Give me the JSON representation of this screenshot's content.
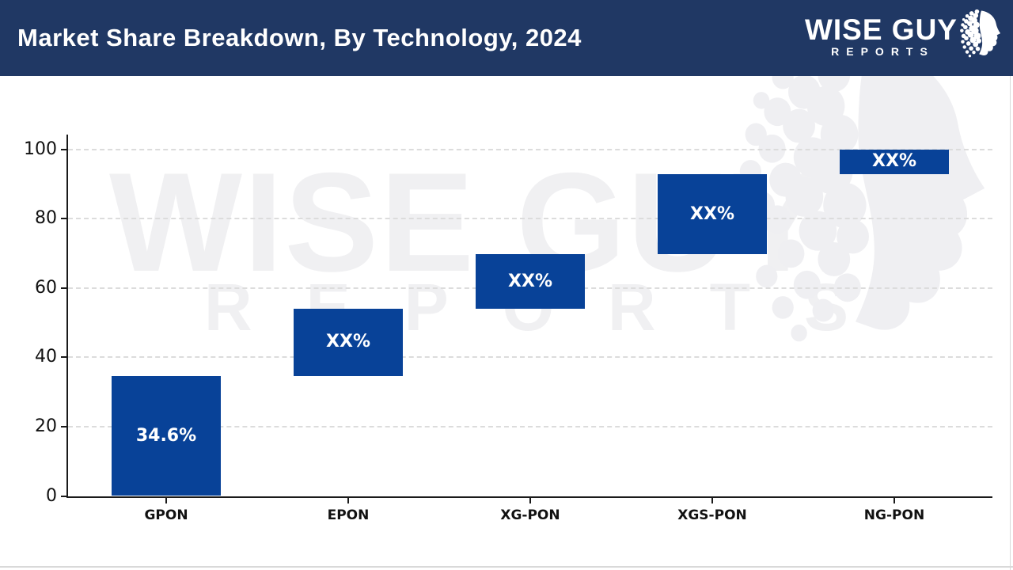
{
  "header": {
    "title": "Market Share Breakdown, By Technology, 2024",
    "logo": {
      "line1": "WISE GUY",
      "line2": "REPORTS"
    }
  },
  "watermark": {
    "line1": "WISE GUY",
    "line2": "REPORTS"
  },
  "colors": {
    "header_bg": "#203864",
    "bar": "#084298",
    "bar_label_text": "#ffffff",
    "grid": "#dcdcdc",
    "axis": "#1a1a1a",
    "tick_text": "#111111",
    "watermark": "#f0f0f2",
    "hairline": "#d9d9d9"
  },
  "chart_data": {
    "type": "bar",
    "subtype": "waterfall",
    "title": "Market Share Breakdown, By Technology, 2024",
    "categories": [
      "GPON",
      "EPON",
      "XG-PON",
      "XGS-PON",
      "NG-PON"
    ],
    "segments": [
      {
        "category": "GPON",
        "start": 0,
        "end": 34.6,
        "label": "34.6%"
      },
      {
        "category": "EPON",
        "start": 34.6,
        "end": 54.0,
        "label": "XX%"
      },
      {
        "category": "XG-PON",
        "start": 54.0,
        "end": 69.7,
        "label": "XX%"
      },
      {
        "category": "XGS-PON",
        "start": 69.7,
        "end": 92.8,
        "label": "XX%"
      },
      {
        "category": "NG-PON",
        "start": 92.8,
        "end": 100,
        "label": "XX%"
      }
    ],
    "yticks": [
      0,
      20,
      40,
      60,
      80,
      100
    ],
    "ylim": [
      0,
      100
    ],
    "xlabel": "",
    "ylabel": "",
    "grid": "horizontal-dashed",
    "legend": "none"
  }
}
